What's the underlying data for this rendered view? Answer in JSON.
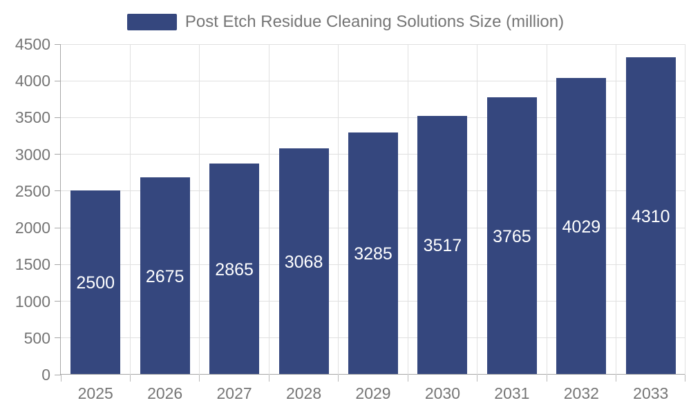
{
  "chart_data": {
    "type": "bar",
    "title": "",
    "legend": "Post Etch Residue Cleaning Solutions Size (million)",
    "legend_position": "top",
    "categories": [
      "2025",
      "2026",
      "2027",
      "2028",
      "2029",
      "2030",
      "2031",
      "2032",
      "2033"
    ],
    "values": [
      2500,
      2675,
      2865,
      3068,
      3285,
      3517,
      3765,
      4029,
      4310
    ],
    "xlabel": "",
    "ylabel": "",
    "ylim": [
      0,
      4500
    ],
    "yticks": [
      0,
      500,
      1000,
      1500,
      2000,
      2500,
      3000,
      3500,
      4000,
      4500
    ],
    "grid": true,
    "value_labels_position": "inside-middle",
    "colors": {
      "series": "#35477E",
      "axis_line": "#A6A6A6",
      "gridline": "#E0E0E0",
      "tick_label": "#757575",
      "legend_label": "#757575",
      "value_label": "#FFFFFF",
      "background": "#FFFFFF"
    }
  }
}
